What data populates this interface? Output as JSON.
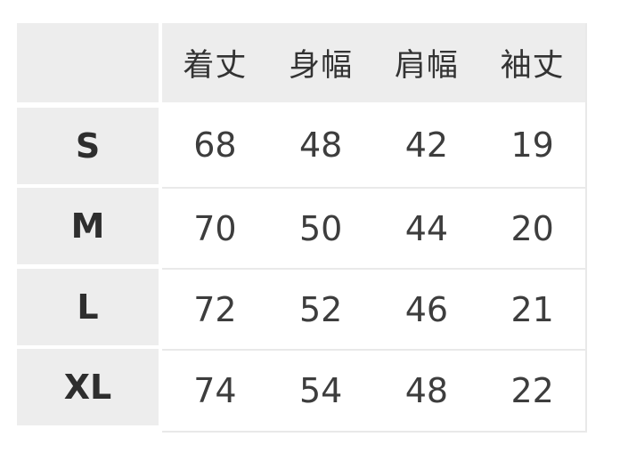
{
  "chart_data": {
    "type": "table",
    "title": "",
    "corner_label": "",
    "column_headers": [
      "着丈",
      "身幅",
      "肩幅",
      "袖丈"
    ],
    "row_headers": [
      "S",
      "M",
      "L",
      "XL"
    ],
    "rows": [
      [
        68,
        48,
        42,
        19
      ],
      [
        70,
        50,
        44,
        20
      ],
      [
        72,
        52,
        46,
        21
      ],
      [
        74,
        54,
        48,
        22
      ]
    ],
    "layout": {
      "grid": "horizontal-dividers-only",
      "legend": "none",
      "header_background": "#ededed",
      "row_label_background": "#ededed",
      "data_background": "#ffffff",
      "divider_color": "#e9e9e9"
    }
  },
  "colors": {
    "cell_gray": "#ededed",
    "divider": "#e9e9e9",
    "header_text": "#333333",
    "number_text": "#3d3d3d",
    "label_text": "#2e2e2e",
    "background": "#ffffff"
  }
}
